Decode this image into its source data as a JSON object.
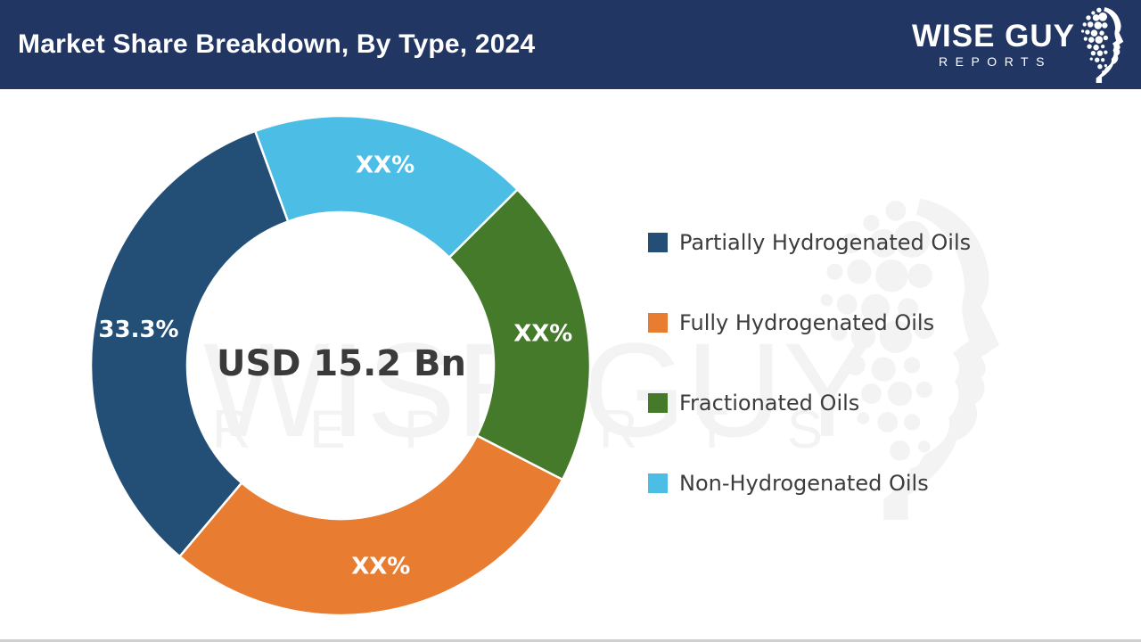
{
  "header": {
    "title": "Market Share Breakdown, By Type, 2024",
    "bg_color": "#223663",
    "logo": {
      "brand_line1": "WISE GUY",
      "brand_line2": "REPORTS"
    }
  },
  "watermark": {
    "line1": "WISE GUY",
    "line2": "REPORTS"
  },
  "chart_data": {
    "type": "pie",
    "subtype": "donut",
    "title": "Market Share Breakdown, By Type, 2024",
    "center_label": "USD 15.2 Bn",
    "legend_position": "right",
    "start_angle_deg": 110,
    "counterclockwise": true,
    "outer_radius_px": 280,
    "inner_radius_px": 172,
    "label_radius_px": 230,
    "slices": [
      {
        "name": "Partially Hydrogenated Oils",
        "slice_label": "33.3%",
        "value_pct": 33.3,
        "color": "#234F77"
      },
      {
        "name": "Fully Hydrogenated Oils",
        "slice_label": "XX%",
        "value_pct": 28.6,
        "color": "#E87C30"
      },
      {
        "name": "Fractionated Oils",
        "slice_label": "XX%",
        "value_pct": 20.0,
        "color": "#447A29"
      },
      {
        "name": "Non-Hydrogenated Oils",
        "slice_label": "XX%",
        "value_pct": 18.1,
        "color": "#4CBEE6"
      }
    ]
  },
  "colors": {
    "header_bg": "#223663",
    "slice_label_text": "#ffffff",
    "center_text": "#3a3a3a",
    "legend_text": "#3c3c3c",
    "watermark": "#f3f3f3",
    "slice_border": "#ffffff"
  }
}
